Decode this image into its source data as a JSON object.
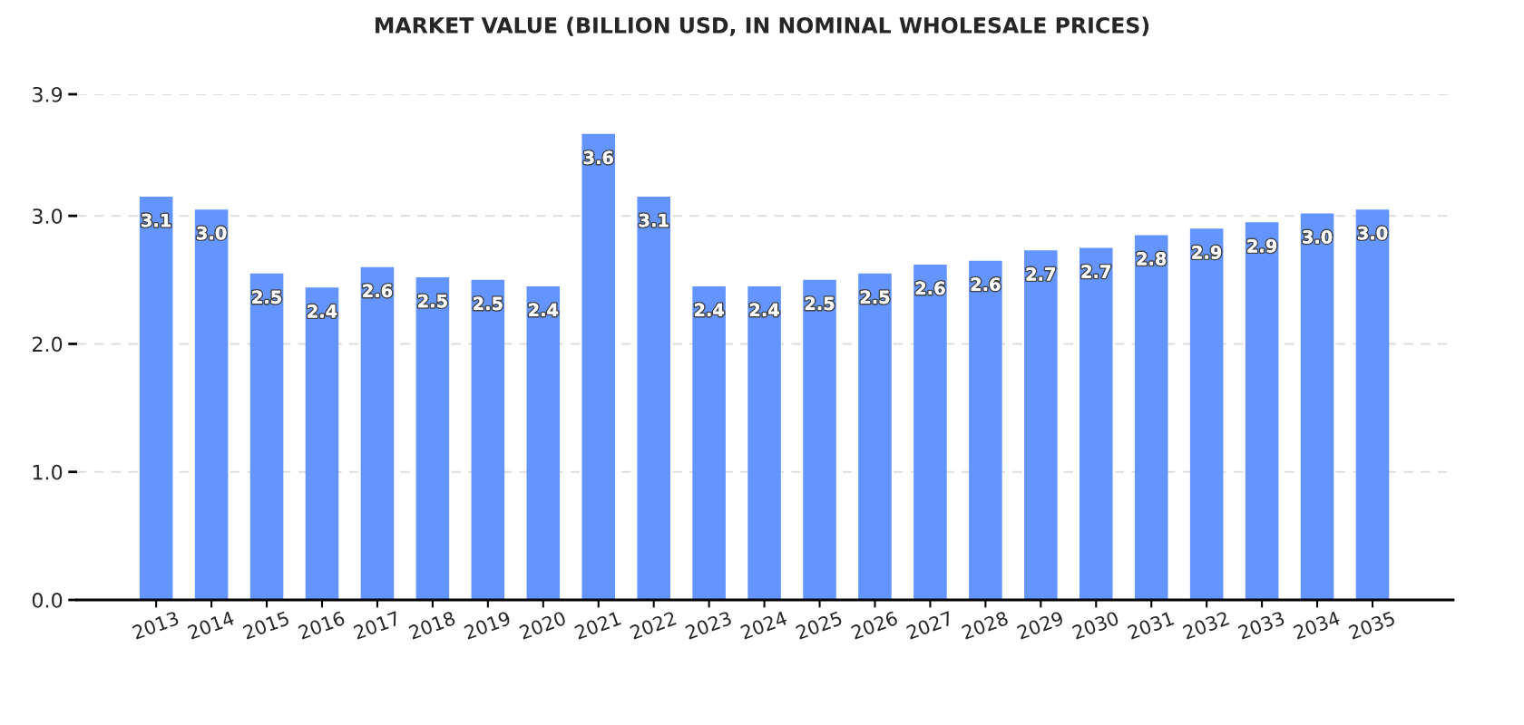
{
  "chart_data": {
    "type": "bar",
    "title": "MARKET VALUE (BILLION USD, IN NOMINAL WHOLESALE PRICES)",
    "categories": [
      "2013",
      "2014",
      "2015",
      "2016",
      "2017",
      "2018",
      "2019",
      "2020",
      "2021",
      "2022",
      "2023",
      "2024",
      "2025",
      "2026",
      "2027",
      "2028",
      "2029",
      "2030",
      "2031",
      "2032",
      "2033",
      "2034",
      "2035"
    ],
    "series": [
      {
        "color": "#6495ff",
        "values": [
          3.15,
          3.05,
          2.55,
          2.44,
          2.6,
          2.52,
          2.5,
          2.45,
          3.64,
          3.15,
          2.45,
          2.45,
          2.5,
          2.55,
          2.62,
          2.65,
          2.73,
          2.75,
          2.85,
          2.9,
          2.95,
          3.02,
          3.05
        ],
        "value_labels": [
          "3.1",
          "3.0",
          "2.5",
          "2.4",
          "2.6",
          "2.5",
          "2.5",
          "2.4",
          "3.6",
          "3.1",
          "2.4",
          "2.4",
          "2.5",
          "2.5",
          "2.6",
          "2.6",
          "2.7",
          "2.7",
          "2.8",
          "2.9",
          "2.9",
          "3.0",
          "3.0"
        ]
      }
    ],
    "ylim": [
      0,
      3.95
    ],
    "yticks": [
      {
        "value": 0,
        "label": "0.0"
      },
      {
        "value": 1,
        "label": "1.0"
      },
      {
        "value": 2,
        "label": "2.0"
      },
      {
        "value": 3,
        "label": "3.0"
      },
      {
        "value": 3.95,
        "label": "3.9"
      }
    ],
    "grid": "y"
  }
}
